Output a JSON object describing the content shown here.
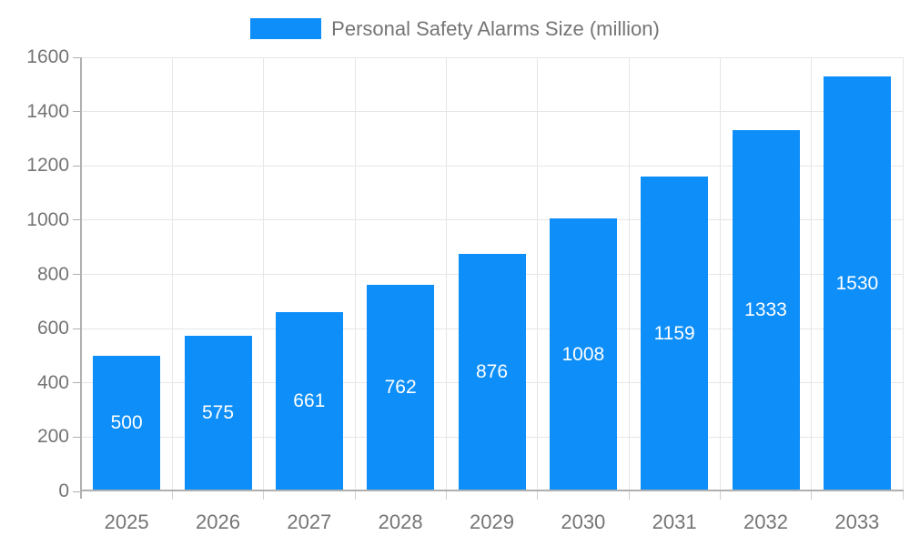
{
  "legend": {
    "label": "Personal Safety Alarms Size (million)"
  },
  "chart_data": {
    "type": "bar",
    "title": "Personal Safety Alarms Size (million)",
    "categories": [
      "2025",
      "2026",
      "2027",
      "2028",
      "2029",
      "2030",
      "2031",
      "2032",
      "2033"
    ],
    "values": [
      500,
      575,
      661,
      762,
      876,
      1008,
      1159,
      1333,
      1530
    ],
    "xlabel": "",
    "ylabel": "",
    "ylim": [
      0,
      1600
    ],
    "yticks": [
      0,
      200,
      400,
      600,
      800,
      1000,
      1200,
      1400,
      1600
    ],
    "grid": true,
    "legend_position": "top-center",
    "value_label_position": "inside-center",
    "colors": {
      "bar": "#0D8EF9",
      "axis_text": "#757575",
      "grid_line": "#E6E6E6",
      "axis_line": "#B0B0B0",
      "value_label": "#FFFFFF",
      "background": "#FFFFFF"
    }
  }
}
